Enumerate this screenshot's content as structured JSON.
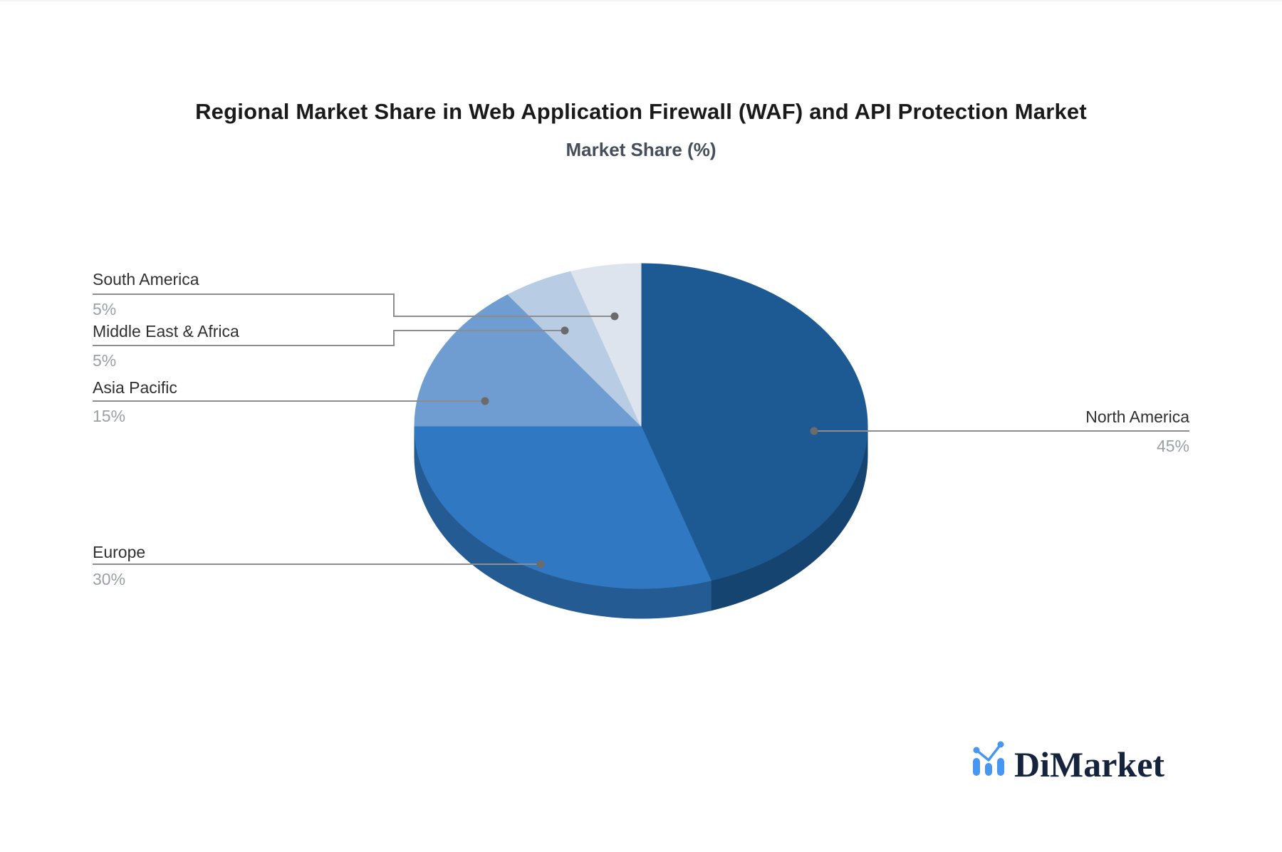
{
  "title": "Regional Market Share in Web Application Firewall (WAF) and API Protection Market",
  "subtitle": "Market Share (%)",
  "chart_data": {
    "type": "pie",
    "title": "Regional Market Share in Web Application Firewall (WAF) and API Protection Market",
    "subtitle": "Market Share (%)",
    "unit": "%",
    "effect": "3d",
    "start_angle_deg": 0,
    "direction": "clockwise",
    "categories": [
      "North America",
      "Europe",
      "Asia Pacific",
      "Middle East & Africa",
      "South America"
    ],
    "values": [
      45,
      30,
      15,
      5,
      5
    ],
    "value_labels": [
      "45%",
      "30%",
      "15%",
      "5%",
      "5%"
    ],
    "colors": [
      "#1d5a93",
      "#3078c2",
      "#6f9dd1",
      "#b8cde4",
      "#dde4ee"
    ],
    "legend_position": "callout-labels"
  },
  "ui_colors": {
    "leader_line": "#8d8d8d",
    "leader_dot": "#6b6b6b",
    "label_name": "#303030",
    "label_value": "#9aa0a5",
    "title": "#1a1a1a",
    "subtitle": "#454e5a"
  },
  "logo": {
    "text": "DiMarket",
    "icon": "bar-line-chart-icon",
    "icon_color": "#4697f2",
    "text_color": "#16233c"
  }
}
